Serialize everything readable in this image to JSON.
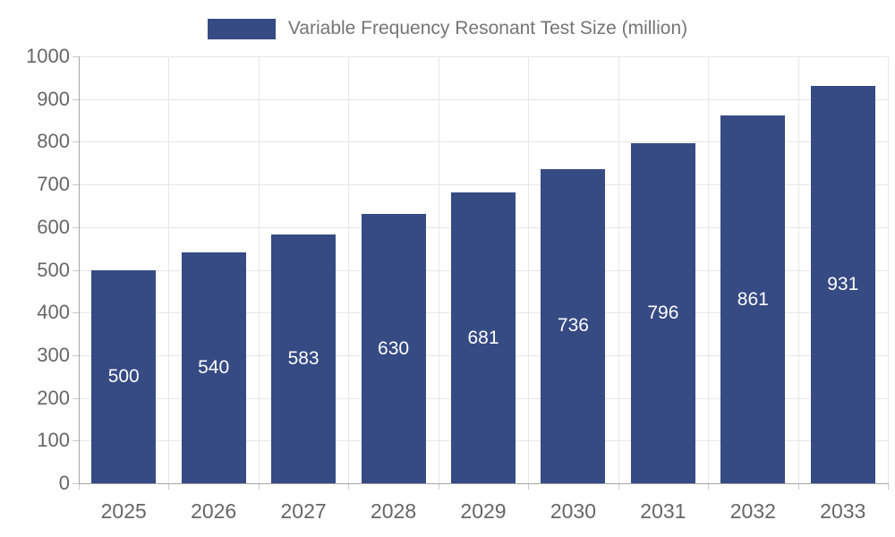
{
  "legend": {
    "label": "Variable Frequency Resonant Test Size (million)"
  },
  "chart_data": {
    "type": "bar",
    "title": "Variable Frequency Resonant Test Size (million)",
    "categories": [
      "2025",
      "2026",
      "2027",
      "2028",
      "2029",
      "2030",
      "2031",
      "2032",
      "2033"
    ],
    "values": [
      500,
      540,
      583,
      630,
      681,
      736,
      796,
      861,
      931
    ],
    "xlabel": "",
    "ylabel": "",
    "ylim": [
      0,
      1000
    ],
    "yticks": [
      0,
      100,
      200,
      300,
      400,
      500,
      600,
      700,
      800,
      900,
      1000
    ],
    "grid": true,
    "legend_position": "top",
    "value_labels": "inside-center",
    "colors": {
      "bar": "#364A84",
      "value_label": "#ffffff",
      "axis_line": "#a6a6a6",
      "tick_mark": "#c9c9c9",
      "gridline": "#e7e7e7",
      "axis_label": "#666666",
      "legend_text": "#757575"
    }
  }
}
